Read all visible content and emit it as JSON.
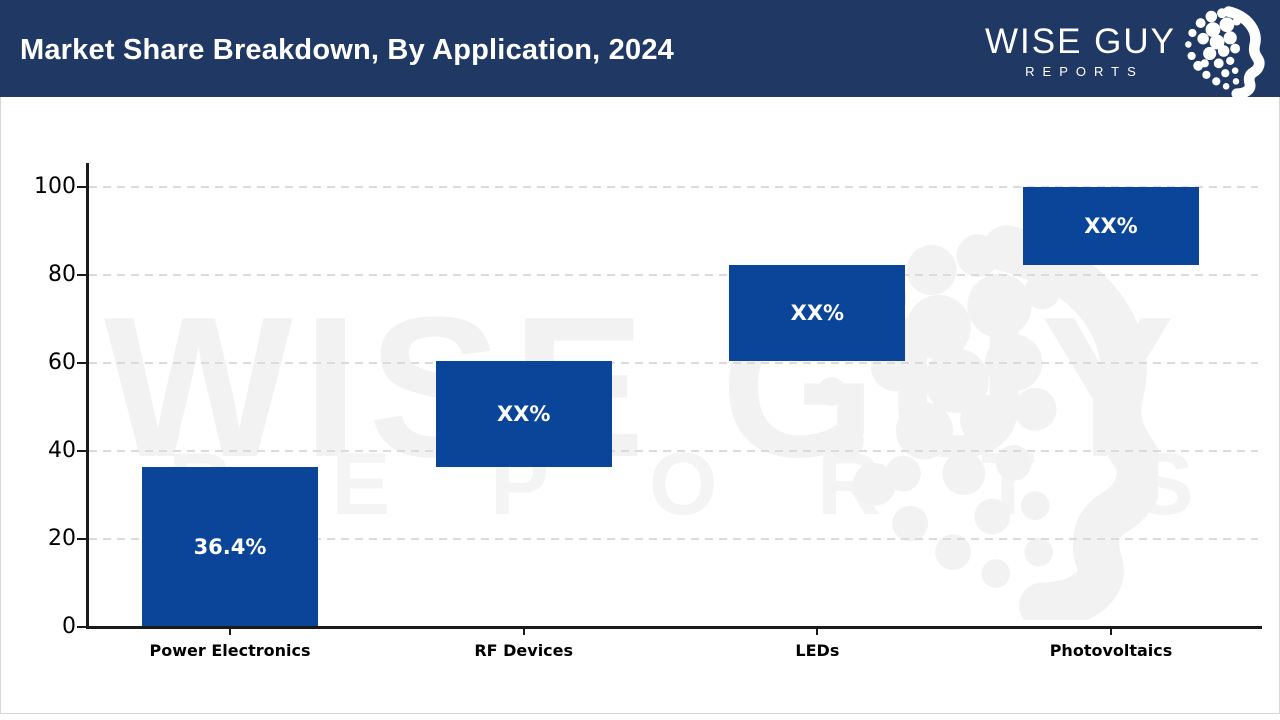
{
  "header": {
    "title": "Market Share Breakdown, By Application, 2024",
    "logo": {
      "wordmark": "WISE GUY",
      "subtext": "REPORTS"
    }
  },
  "watermark": {
    "wordmark": "WISE GUY",
    "subtext": "REPORTS"
  },
  "colors": {
    "header_bg": "#1F3864",
    "bar": "#0B4599",
    "bar_label": "#FFFFFF",
    "axis": "#1A1A1A",
    "grid": "#DBDBDB",
    "watermark": "#F2F2F2"
  },
  "chart_data": {
    "type": "bar",
    "subtype": "floating-waterfall",
    "title": "Market Share Breakdown, By Application, 2024",
    "categories": [
      "Power Electronics",
      "RF Devices",
      "LEDs",
      "Photovoltaics"
    ],
    "segments": [
      [
        0,
        36.4
      ],
      [
        36.4,
        60.5
      ],
      [
        60.5,
        82.3
      ],
      [
        82.3,
        100
      ]
    ],
    "bar_labels": [
      "36.4%",
      "XX%",
      "XX%",
      "XX%"
    ],
    "y_ticks": [
      0,
      20,
      40,
      60,
      80,
      100
    ],
    "ylim": [
      0,
      100
    ],
    "grid": "horizontal-dashed",
    "legend": "none"
  }
}
